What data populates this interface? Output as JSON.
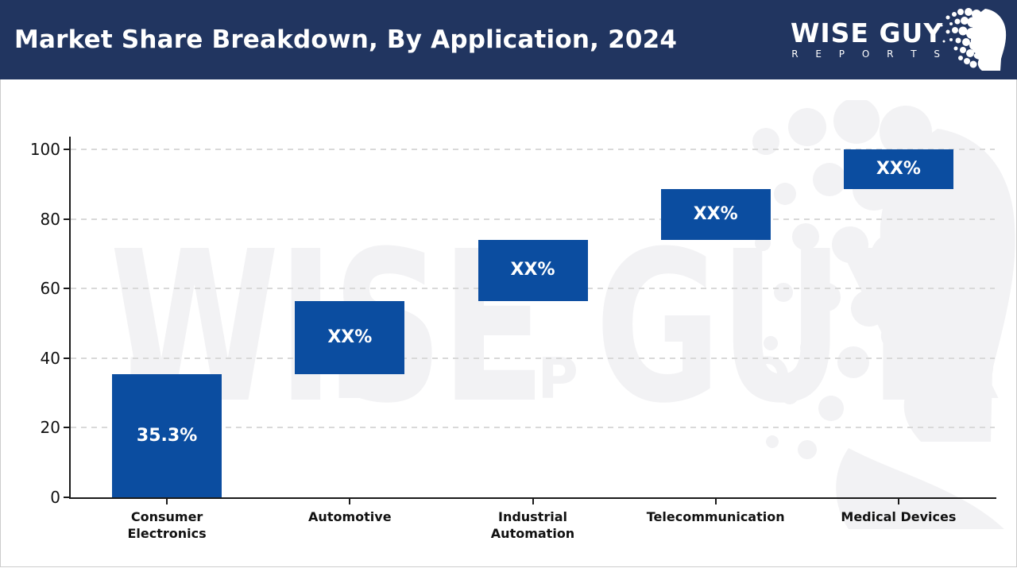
{
  "header": {
    "title": "Market Share Breakdown, By Application, 2024",
    "logo": {
      "line1": "WISE GUY",
      "line2": "R E P O R T S"
    }
  },
  "watermark": {
    "line1": "WISE GUY",
    "line2": "R E P O R T S"
  },
  "colors": {
    "header_bg": "#213560",
    "bar": "#0b4da0",
    "grid": "#d9d9d9",
    "axis": "#1a1a1a",
    "watermark": "#f2f2f4",
    "title_text": "#ffffff",
    "bar_label_text": "#ffffff"
  },
  "chart_data": {
    "type": "bar",
    "subtype": "waterfall",
    "title": "Market Share Breakdown, By Application, 2024",
    "categories": [
      "Consumer Electronics",
      "Automotive",
      "Industrial Automation",
      "Telecommunication",
      "Medical Devices"
    ],
    "categories_display": [
      "Consumer\nElectronics",
      "Automotive",
      "Industrial\nAutomation",
      "Telecommunication",
      "Medical Devices"
    ],
    "segments": [
      {
        "label": "35.3%",
        "start": 0,
        "end": 35.3
      },
      {
        "label": "XX%",
        "start": 35.3,
        "end": 56.5
      },
      {
        "label": "XX%",
        "start": 56.5,
        "end": 74
      },
      {
        "label": "XX%",
        "start": 74,
        "end": 88.5
      },
      {
        "label": "XX%",
        "start": 88.5,
        "end": 100
      }
    ],
    "ylim": [
      0,
      100
    ],
    "yticks": [
      0,
      20,
      40,
      60,
      80,
      100
    ],
    "xlabel": "",
    "ylabel": "",
    "grid": "horizontal-dashed",
    "legend": "none"
  }
}
